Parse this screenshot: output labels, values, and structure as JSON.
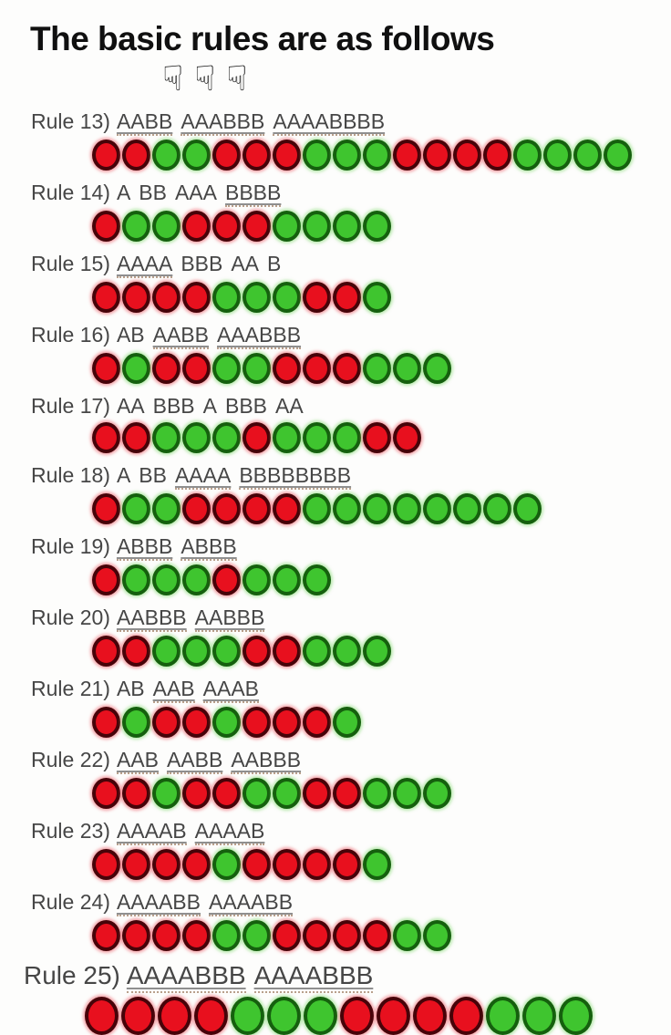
{
  "page": {
    "title": "The basic rules are as follows",
    "hands": "☟☟☟"
  },
  "colors": {
    "red_dot_fill": "#e8101e",
    "red_dot_ring": "#470309",
    "green_dot_fill": "#3fc52f",
    "green_dot_ring": "#15600e",
    "label_text": "#464646",
    "title_text": "#101010"
  },
  "dot_legend": {
    "A": "red",
    "B": "green"
  },
  "rules": [
    {
      "label": "Rule 13)",
      "groups": [
        {
          "text": "AABB",
          "underlined": true
        },
        {
          "text": "AAABBB",
          "underlined": true
        },
        {
          "text": "AAAABBBB",
          "underlined": true
        }
      ],
      "dots": "RRGGRRRGGGRRRRGGGG",
      "large": false
    },
    {
      "label": "Rule 14)",
      "groups": [
        {
          "text": "A",
          "underlined": false
        },
        {
          "text": "BB",
          "underlined": false
        },
        {
          "text": "AAA",
          "underlined": false
        },
        {
          "text": "BBBB",
          "underlined": true
        }
      ],
      "dots": "RGGRRRGGGG",
      "large": false
    },
    {
      "label": "Rule 15)",
      "groups": [
        {
          "text": "AAAA",
          "underlined": true
        },
        {
          "text": "BBB",
          "underlined": false
        },
        {
          "text": "AA",
          "underlined": false
        },
        {
          "text": "B",
          "underlined": false
        }
      ],
      "dots": "RRRRGGGRRG",
      "large": false
    },
    {
      "label": "Rule 16)",
      "groups": [
        {
          "text": "AB",
          "underlined": false
        },
        {
          "text": "AABB",
          "underlined": true
        },
        {
          "text": "AAABBB",
          "underlined": true
        }
      ],
      "dots": "RGRRGGRRRGGG",
      "large": false
    },
    {
      "label": "Rule 17)",
      "groups": [
        {
          "text": "AA",
          "underlined": false
        },
        {
          "text": "BBB",
          "underlined": false
        },
        {
          "text": "A",
          "underlined": false
        },
        {
          "text": "BBB",
          "underlined": false
        },
        {
          "text": "AA",
          "underlined": false
        }
      ],
      "dots": "RRGGGRGGGRR",
      "large": false
    },
    {
      "label": "Rule 18)",
      "groups": [
        {
          "text": "A",
          "underlined": false
        },
        {
          "text": "BB",
          "underlined": false
        },
        {
          "text": "AAAA",
          "underlined": true
        },
        {
          "text": "BBBBBBBB",
          "underlined": true
        }
      ],
      "dots": "RGGRRRRGGGGGGGG",
      "large": false
    },
    {
      "label": "Rule 19)",
      "groups": [
        {
          "text": "ABBB",
          "underlined": true
        },
        {
          "text": "ABBB",
          "underlined": true
        }
      ],
      "dots": "RGGGRGGG",
      "large": false
    },
    {
      "label": "Rule 20)",
      "groups": [
        {
          "text": "AABBB",
          "underlined": true
        },
        {
          "text": "AABBB",
          "underlined": true
        }
      ],
      "dots": "RRGGGRRGGG",
      "large": false
    },
    {
      "label": "Rule 21)",
      "groups": [
        {
          "text": "AB",
          "underlined": false
        },
        {
          "text": "AAB",
          "underlined": true
        },
        {
          "text": "AAAB",
          "underlined": true
        }
      ],
      "dots": "RGRRGRRRG",
      "large": false
    },
    {
      "label": "Rule 22)",
      "groups": [
        {
          "text": "AAB",
          "underlined": true
        },
        {
          "text": "AABB",
          "underlined": true
        },
        {
          "text": "AABBB",
          "underlined": true
        }
      ],
      "dots": "RRGRRGGRRGGG",
      "large": false
    },
    {
      "label": "Rule 23)",
      "groups": [
        {
          "text": "AAAAB",
          "underlined": true
        },
        {
          "text": "AAAAB",
          "underlined": true
        }
      ],
      "dots": "RRRRGRRRRG",
      "large": false
    },
    {
      "label": "Rule 24)",
      "groups": [
        {
          "text": "AAAABB",
          "underlined": true
        },
        {
          "text": "AAAABB",
          "underlined": true
        }
      ],
      "dots": "RRRRGGRRRRGG",
      "large": false
    },
    {
      "label": "Rule 25)",
      "groups": [
        {
          "text": "AAAABBB",
          "underlined": true
        },
        {
          "text": "AAAABBB",
          "underlined": true
        }
      ],
      "dots": "RRRRGGGRRRRGGG",
      "large": true
    }
  ]
}
